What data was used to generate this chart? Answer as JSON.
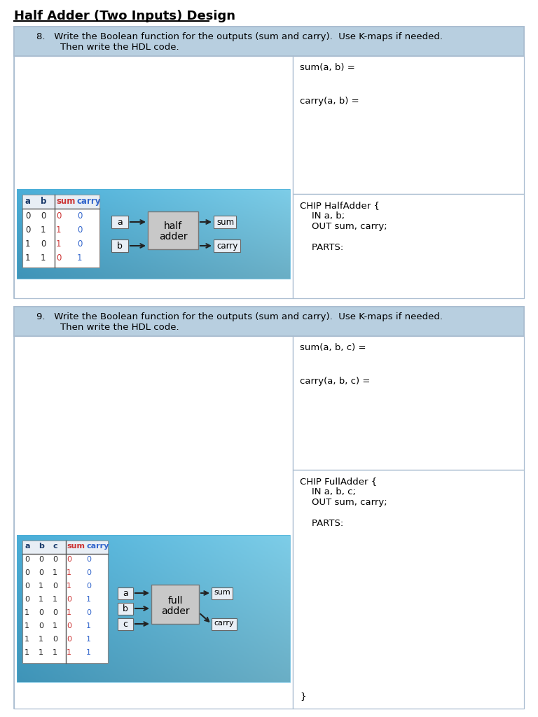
{
  "title": "Half Adder (Two Inputs) Design",
  "page_bg": "#ffffff",
  "outer_border_color": "#aabdd0",
  "header_bg": "#b8cfe0",
  "q8_header_line1": "8.   Write the Boolean function for the outputs (sum and carry).  Use K-maps if needed.",
  "q8_header_line2": "        Then write the HDL code.",
  "q9_header_line1": "9.   Write the Boolean function for the outputs (sum and carry).  Use K-maps if needed.",
  "q9_header_line2": "        Then write the HDL code.",
  "tbl_bg": "#4aaed8",
  "half_adder_rows": [
    [
      "0",
      "0",
      "0",
      "0"
    ],
    [
      "0",
      "1",
      "1",
      "0"
    ],
    [
      "1",
      "0",
      "1",
      "0"
    ],
    [
      "1",
      "1",
      "0",
      "1"
    ]
  ],
  "full_adder_rows": [
    [
      "0",
      "0",
      "0",
      "0",
      "0"
    ],
    [
      "0",
      "0",
      "1",
      "1",
      "0"
    ],
    [
      "0",
      "1",
      "0",
      "1",
      "0"
    ],
    [
      "0",
      "1",
      "1",
      "0",
      "1"
    ],
    [
      "1",
      "0",
      "0",
      "1",
      "0"
    ],
    [
      "1",
      "0",
      "1",
      "0",
      "1"
    ],
    [
      "1",
      "1",
      "0",
      "0",
      "1"
    ],
    [
      "1",
      "1",
      "1",
      "1",
      "1"
    ]
  ],
  "sum_color": "#cc3333",
  "carry_color": "#3366cc",
  "input_label_color": "#1a3a6a",
  "box_main_bg": "#c8c8c8",
  "box_io_bg": "#e8eef5",
  "tt_bg": "#ffffff",
  "tt_border": "#555555"
}
